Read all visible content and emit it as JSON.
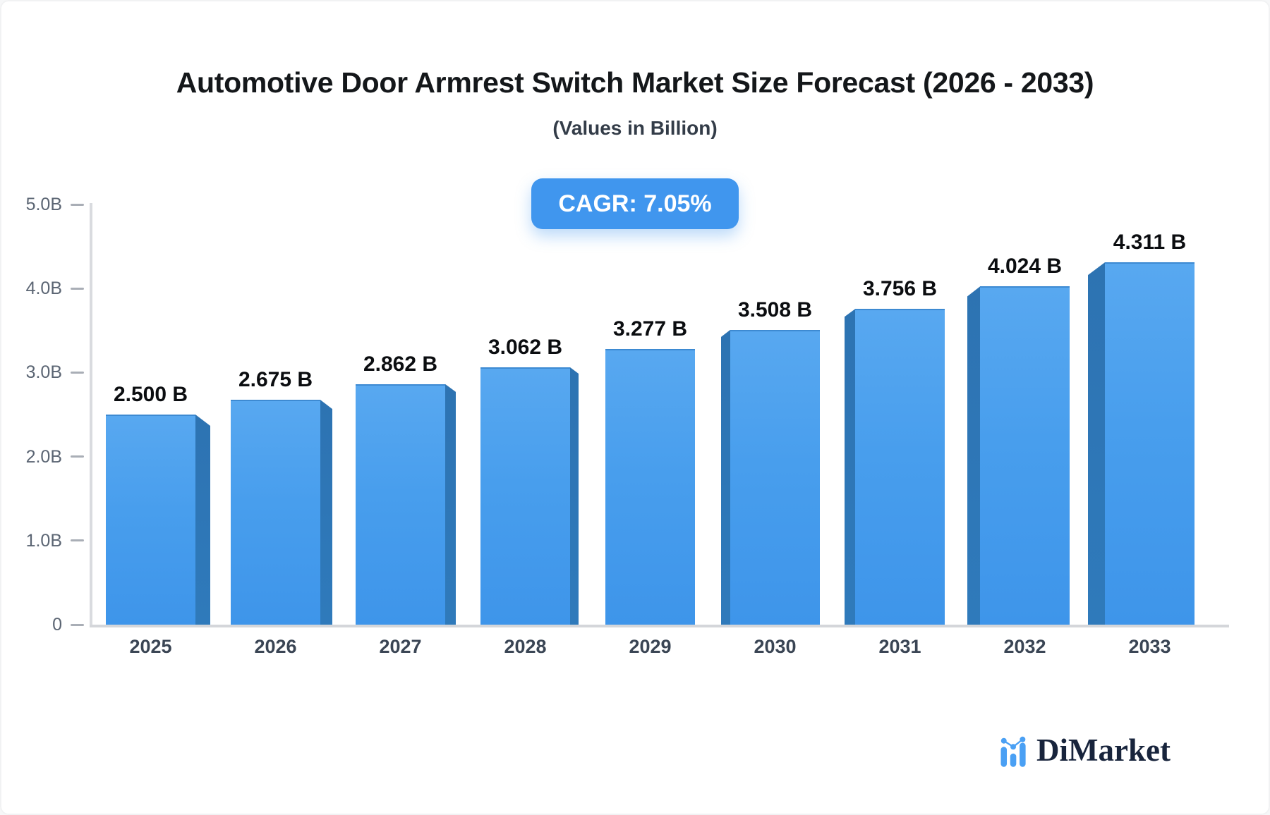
{
  "chart_data": {
    "type": "bar",
    "title": "Automotive Door Armrest Switch Market Size Forecast (2026 - 2033)",
    "subtitle": "(Values in Billion)",
    "cagr_label": "CAGR: 7.05%",
    "categories": [
      "2025",
      "2026",
      "2027",
      "2028",
      "2029",
      "2030",
      "2031",
      "2032",
      "2033"
    ],
    "values": [
      2.5,
      2.675,
      2.862,
      3.062,
      3.277,
      3.508,
      3.756,
      4.024,
      4.311
    ],
    "value_labels": [
      "2.500 B",
      "2.675 B",
      "2.862 B",
      "3.062 B",
      "3.277 B",
      "3.508 B",
      "3.756 B",
      "4.024 B",
      "4.311 B"
    ],
    "unit": "Billion",
    "xlabel": "",
    "ylabel": "",
    "ylim": [
      0,
      5.0
    ],
    "y_ticks": [
      {
        "value": 0,
        "label": "0"
      },
      {
        "value": 1,
        "label": "1.0B"
      },
      {
        "value": 2,
        "label": "2.0B"
      },
      {
        "value": 3,
        "label": "3.0B"
      },
      {
        "value": 4,
        "label": "4.0B"
      },
      {
        "value": 5,
        "label": "5.0B"
      }
    ],
    "grid": false,
    "legend": false,
    "colors": {
      "bar_face_top": "#58a8f0",
      "bar_face_bottom": "#3e95ea",
      "bar_side": "#2e77b8",
      "accent": "#4096ee"
    }
  },
  "footer": {
    "brand": "DiMarket"
  }
}
